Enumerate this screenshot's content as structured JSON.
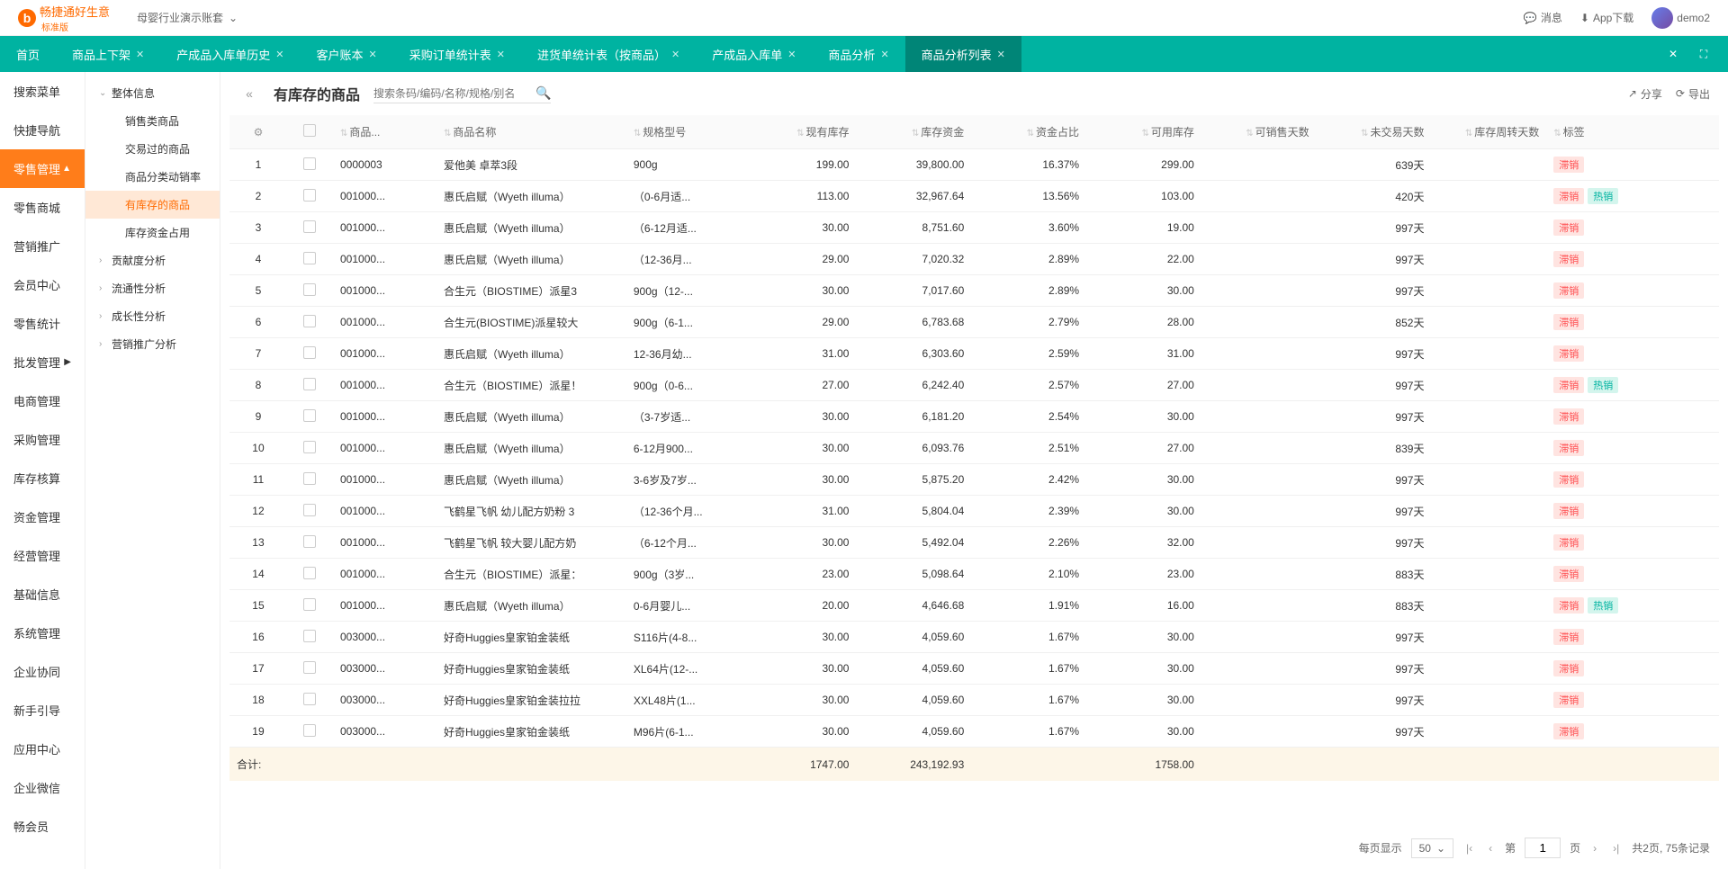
{
  "topbar": {
    "logo_text": "畅捷通好生意",
    "logo_badge": "标准版",
    "account": "母婴行业演示账套",
    "msg": "消息",
    "download": "App下载",
    "user": "demo2"
  },
  "tabs": [
    {
      "label": "首页",
      "closable": false
    },
    {
      "label": "商品上下架",
      "closable": true
    },
    {
      "label": "产成品入库单历史",
      "closable": true
    },
    {
      "label": "客户账本",
      "closable": true
    },
    {
      "label": "采购订单统计表",
      "closable": true
    },
    {
      "label": "进货单统计表（按商品）",
      "closable": true
    },
    {
      "label": "产成品入库单",
      "closable": true
    },
    {
      "label": "商品分析",
      "closable": true
    },
    {
      "label": "商品分析列表",
      "closable": true,
      "active": true
    }
  ],
  "nav": [
    {
      "label": "搜索菜单"
    },
    {
      "label": "快捷导航"
    },
    {
      "label": "零售管理",
      "active": true,
      "expandable": true
    },
    {
      "label": "零售商城"
    },
    {
      "label": "营销推广"
    },
    {
      "label": "会员中心"
    },
    {
      "label": "零售统计"
    },
    {
      "label": "批发管理",
      "expandable": true
    },
    {
      "label": "电商管理"
    },
    {
      "label": "采购管理"
    },
    {
      "label": "库存核算"
    },
    {
      "label": "资金管理"
    },
    {
      "label": "经营管理"
    },
    {
      "label": "基础信息"
    },
    {
      "label": "系统管理"
    },
    {
      "label": "企业协同"
    },
    {
      "label": "新手引导"
    },
    {
      "label": "应用中心"
    },
    {
      "label": "企业微信"
    },
    {
      "label": "畅会员"
    }
  ],
  "tree": {
    "header": "整体信息",
    "items": [
      {
        "label": "销售类商品",
        "indent": 1
      },
      {
        "label": "交易过的商品",
        "indent": 1
      },
      {
        "label": "商品分类动销率",
        "indent": 1
      },
      {
        "label": "有库存的商品",
        "indent": 1,
        "active": true
      },
      {
        "label": "库存资金占用",
        "indent": 1
      },
      {
        "label": "贡献度分析",
        "indent": 0,
        "caret": true
      },
      {
        "label": "流通性分析",
        "indent": 0,
        "caret": true
      },
      {
        "label": "成长性分析",
        "indent": 0,
        "caret": true
      },
      {
        "label": "营销推广分析",
        "indent": 0,
        "caret": true
      }
    ]
  },
  "main": {
    "title": "有库存的商品",
    "search_placeholder": "搜索条码/编码/名称/规格/别名",
    "share": "分享",
    "export": "导出"
  },
  "columns": [
    {
      "key": "idx",
      "label": ""
    },
    {
      "key": "chk",
      "label": ""
    },
    {
      "key": "code",
      "label": "商品..."
    },
    {
      "key": "name",
      "label": "商品名称"
    },
    {
      "key": "spec",
      "label": "规格型号"
    },
    {
      "key": "stock",
      "label": "现有库存",
      "align": "right"
    },
    {
      "key": "fund",
      "label": "库存资金",
      "align": "right"
    },
    {
      "key": "ratio",
      "label": "资金占比",
      "align": "right"
    },
    {
      "key": "avail",
      "label": "可用库存",
      "align": "right"
    },
    {
      "key": "sale_days",
      "label": "可销售天数",
      "align": "right"
    },
    {
      "key": "no_trade",
      "label": "未交易天数",
      "align": "right"
    },
    {
      "key": "turn",
      "label": "库存周转天数",
      "align": "right"
    },
    {
      "key": "tags",
      "label": "标签"
    }
  ],
  "rows": [
    {
      "idx": 1,
      "code": "0000003",
      "name": "爱他美 卓萃3段",
      "spec": "900g",
      "stock": "199.00",
      "fund": "39,800.00",
      "ratio": "16.37%",
      "avail": "299.00",
      "no_trade": "639天",
      "tags": [
        "滞销"
      ]
    },
    {
      "idx": 2,
      "code": "001000...",
      "name": "惠氏启赋（Wyeth illuma）",
      "spec": "（0-6月适...",
      "stock": "113.00",
      "fund": "32,967.64",
      "ratio": "13.56%",
      "avail": "103.00",
      "no_trade": "420天",
      "tags": [
        "滞销",
        "热销"
      ]
    },
    {
      "idx": 3,
      "code": "001000...",
      "name": "惠氏启赋（Wyeth illuma）",
      "spec": "（6-12月适...",
      "stock": "30.00",
      "fund": "8,751.60",
      "ratio": "3.60%",
      "avail": "19.00",
      "no_trade": "997天",
      "tags": [
        "滞销"
      ]
    },
    {
      "idx": 4,
      "code": "001000...",
      "name": "惠氏启赋（Wyeth illuma）",
      "spec": "（12-36月...",
      "stock": "29.00",
      "fund": "7,020.32",
      "ratio": "2.89%",
      "avail": "22.00",
      "no_trade": "997天",
      "tags": [
        "滞销"
      ]
    },
    {
      "idx": 5,
      "code": "001000...",
      "name": "合生元（BIOSTIME）派星3",
      "spec": "900g（12-...",
      "stock": "30.00",
      "fund": "7,017.60",
      "ratio": "2.89%",
      "avail": "30.00",
      "no_trade": "997天",
      "tags": [
        "滞销"
      ]
    },
    {
      "idx": 6,
      "code": "001000...",
      "name": "合生元(BIOSTIME)派星较大",
      "spec": "900g（6-1...",
      "stock": "29.00",
      "fund": "6,783.68",
      "ratio": "2.79%",
      "avail": "28.00",
      "no_trade": "852天",
      "tags": [
        "滞销"
      ]
    },
    {
      "idx": 7,
      "code": "001000...",
      "name": "惠氏启赋（Wyeth illuma）",
      "spec": "12-36月幼...",
      "stock": "31.00",
      "fund": "6,303.60",
      "ratio": "2.59%",
      "avail": "31.00",
      "no_trade": "997天",
      "tags": [
        "滞销"
      ]
    },
    {
      "idx": 8,
      "code": "001000...",
      "name": "合生元（BIOSTIME）派星！",
      "spec": "900g（0-6...",
      "stock": "27.00",
      "fund": "6,242.40",
      "ratio": "2.57%",
      "avail": "27.00",
      "no_trade": "997天",
      "tags": [
        "滞销",
        "热销"
      ]
    },
    {
      "idx": 9,
      "code": "001000...",
      "name": "惠氏启赋（Wyeth illuma）",
      "spec": "（3-7岁适...",
      "stock": "30.00",
      "fund": "6,181.20",
      "ratio": "2.54%",
      "avail": "30.00",
      "no_trade": "997天",
      "tags": [
        "滞销"
      ]
    },
    {
      "idx": 10,
      "code": "001000...",
      "name": "惠氏启赋（Wyeth illuma）",
      "spec": "6-12月900...",
      "stock": "30.00",
      "fund": "6,093.76",
      "ratio": "2.51%",
      "avail": "27.00",
      "no_trade": "839天",
      "tags": [
        "滞销"
      ]
    },
    {
      "idx": 11,
      "code": "001000...",
      "name": "惠氏启赋（Wyeth illuma）",
      "spec": "3-6岁及7岁...",
      "stock": "30.00",
      "fund": "5,875.20",
      "ratio": "2.42%",
      "avail": "30.00",
      "no_trade": "997天",
      "tags": [
        "滞销"
      ]
    },
    {
      "idx": 12,
      "code": "001000...",
      "name": "飞鹤星飞帆 幼儿配方奶粉 3",
      "spec": "（12-36个月...",
      "stock": "31.00",
      "fund": "5,804.04",
      "ratio": "2.39%",
      "avail": "30.00",
      "no_trade": "997天",
      "tags": [
        "滞销"
      ]
    },
    {
      "idx": 13,
      "code": "001000...",
      "name": "飞鹤星飞帆 较大婴儿配方奶",
      "spec": "（6-12个月...",
      "stock": "30.00",
      "fund": "5,492.04",
      "ratio": "2.26%",
      "avail": "32.00",
      "no_trade": "997天",
      "tags": [
        "滞销"
      ]
    },
    {
      "idx": 14,
      "code": "001000...",
      "name": "合生元（BIOSTIME）派星：",
      "spec": "900g（3岁...",
      "stock": "23.00",
      "fund": "5,098.64",
      "ratio": "2.10%",
      "avail": "23.00",
      "no_trade": "883天",
      "tags": [
        "滞销"
      ]
    },
    {
      "idx": 15,
      "code": "001000...",
      "name": "惠氏启赋（Wyeth illuma）",
      "spec": "0-6月婴儿...",
      "stock": "20.00",
      "fund": "4,646.68",
      "ratio": "1.91%",
      "avail": "16.00",
      "no_trade": "883天",
      "tags": [
        "滞销",
        "热销"
      ]
    },
    {
      "idx": 16,
      "code": "003000...",
      "name": "好奇Huggies皇家铂金装纸",
      "spec": "S116片(4-8...",
      "stock": "30.00",
      "fund": "4,059.60",
      "ratio": "1.67%",
      "avail": "30.00",
      "no_trade": "997天",
      "tags": [
        "滞销"
      ]
    },
    {
      "idx": 17,
      "code": "003000...",
      "name": "好奇Huggies皇家铂金装纸",
      "spec": "XL64片(12-...",
      "stock": "30.00",
      "fund": "4,059.60",
      "ratio": "1.67%",
      "avail": "30.00",
      "no_trade": "997天",
      "tags": [
        "滞销"
      ]
    },
    {
      "idx": 18,
      "code": "003000...",
      "name": "好奇Huggies皇家铂金装拉拉",
      "spec": "XXL48片(1...",
      "stock": "30.00",
      "fund": "4,059.60",
      "ratio": "1.67%",
      "avail": "30.00",
      "no_trade": "997天",
      "tags": [
        "滞销"
      ]
    },
    {
      "idx": 19,
      "code": "003000...",
      "name": "好奇Huggies皇家铂金装纸",
      "spec": "M96片(6-1...",
      "stock": "30.00",
      "fund": "4,059.60",
      "ratio": "1.67%",
      "avail": "30.00",
      "no_trade": "997天",
      "tags": [
        "滞销"
      ]
    }
  ],
  "totals": {
    "label": "合计:",
    "stock": "1747.00",
    "fund": "243,192.93",
    "avail": "1758.00"
  },
  "pagination": {
    "per_page_label": "每页显示",
    "per_page": "50",
    "page_label_pre": "第",
    "page": "1",
    "page_label_post": "页",
    "summary": "共2页, 75条记录"
  }
}
